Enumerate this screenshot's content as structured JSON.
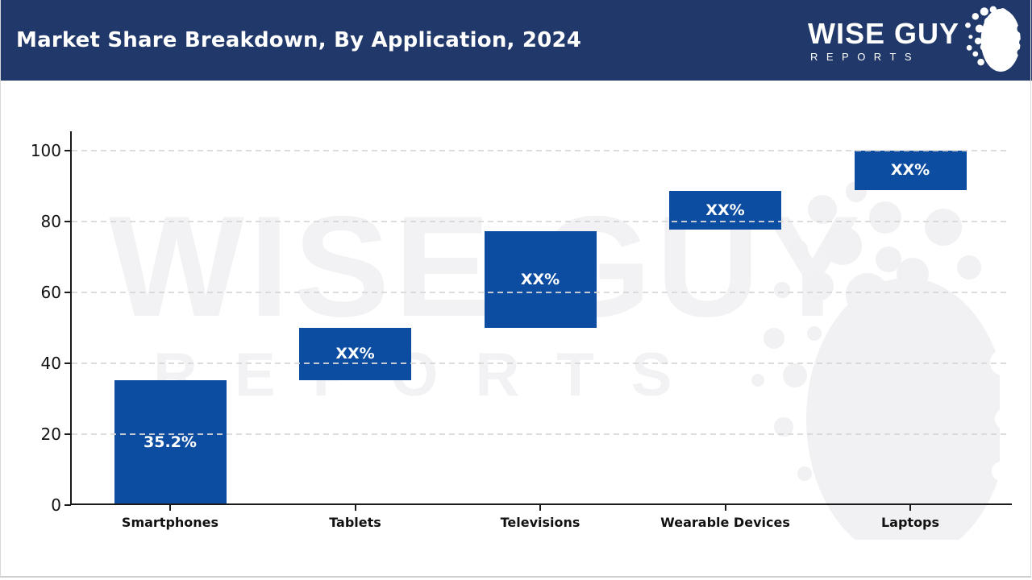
{
  "header": {
    "title": "Market Share Breakdown, By Application, 2024",
    "logo": {
      "line1": "WISE GUY",
      "line2": "REPORTS"
    }
  },
  "watermark": {
    "line1": "WISE GUY",
    "line2": "REPORTS"
  },
  "colors": {
    "header_bg": "#20386a",
    "bar": "#0c4da2",
    "grid": "#d8d8d8",
    "axis": "#1a1a1a",
    "tick_label": "#111111",
    "bar_label": "#ffffff",
    "watermark": "#f2f2f4"
  },
  "chart_data": {
    "type": "bar",
    "variant": "waterfall",
    "title": "Market Share Breakdown, By Application, 2024",
    "categories": [
      "Smartphones",
      "Tablets",
      "Televisions",
      "Wearable Devices",
      "Laptops"
    ],
    "series": [
      {
        "name": "Market Share (%)",
        "segments": [
          {
            "category": "Smartphones",
            "start": 0,
            "end": 35.2,
            "label": "35.2%"
          },
          {
            "category": "Tablets",
            "start": 35.2,
            "end": 50.0,
            "label": "XX%"
          },
          {
            "category": "Televisions",
            "start": 50.0,
            "end": 77.3,
            "label": "XX%"
          },
          {
            "category": "Wearable Devices",
            "start": 77.7,
            "end": 88.6,
            "label": "XX%"
          },
          {
            "category": "Laptops",
            "start": 88.8,
            "end": 100.0,
            "label": "XX%"
          }
        ]
      }
    ],
    "xlabel": "",
    "ylabel": "",
    "ylim": [
      0,
      105
    ],
    "yticks": [
      0,
      20,
      40,
      60,
      80,
      100
    ],
    "grid": "horizontal dashed gridlines drawn above bars",
    "legend": "none",
    "value_labels": "centered inside bars, white bold"
  }
}
